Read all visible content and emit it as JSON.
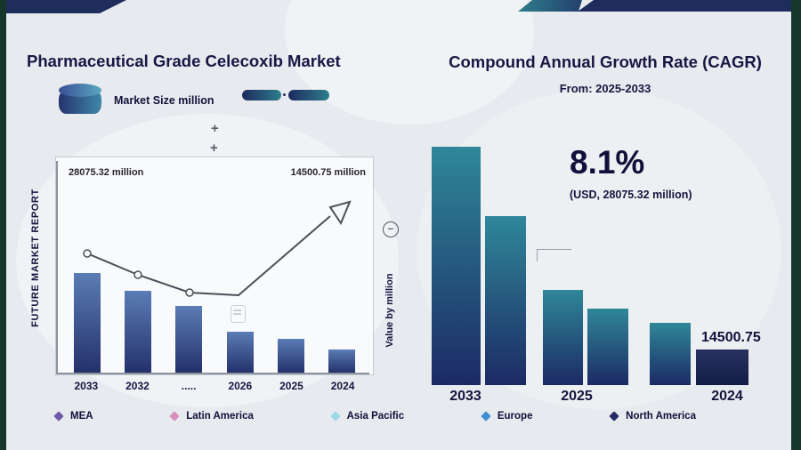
{
  "page": {
    "background": "#e7eaee",
    "accent_teal": "#2e7d8c",
    "accent_navy": "#1f2d5c",
    "edge_stripe": "#16362b"
  },
  "decorations": {
    "plus_sign": "+",
    "minus_sign": "−"
  },
  "left_section": {
    "title": "Pharmaceutical Grade Celecoxib Market",
    "icon_label": "Market Size million",
    "side_label": "FUTURE MARKET REPORT",
    "axis_label": "Value by million",
    "annotation_left": "28075.32 million",
    "annotation_right": "14500.75 million"
  },
  "right_section": {
    "title": "Compound Annual Growth Rate (CAGR)",
    "subtitle": "From: 2025-2033",
    "cagr": "8.1%",
    "cagr_detail": "(USD, 28075.32 million)",
    "end_value": "14500.75"
  },
  "legend": [
    {
      "label": "MEA",
      "color": "#6f58a8"
    },
    {
      "label": "Latin America",
      "color": "#d88fbe"
    },
    {
      "label": "Asia Pacific",
      "color": "#9ed9ea"
    },
    {
      "label": "Europe",
      "color": "#3f8fd2"
    },
    {
      "label": "North America",
      "color": "#232e66"
    }
  ],
  "chart_data": [
    {
      "type": "bar",
      "title": "Pharmaceutical Grade Celecoxib Market — Market Size (million)",
      "categories": [
        "2033",
        "2032",
        ".....",
        "2026",
        "2025",
        "2024"
      ],
      "values": [
        28075.32,
        24000,
        20000,
        17000,
        15700,
        14500.75
      ],
      "labeled_values": {
        "2033": 28075.32,
        "2024": 14500.75
      },
      "ylabel": "Value by million",
      "xlabel": "",
      "grid": false,
      "bar_heights_pct": [
        100,
        82,
        67,
        41,
        34,
        23
      ],
      "trend_note": "line with circular markers descending from 2033, then arrow rising toward the 14500.75 million annotation"
    },
    {
      "type": "bar",
      "title": "Compound Annual Growth Rate (CAGR)",
      "subtitle": "From: 2025-2033",
      "categories": [
        "2033",
        "2025",
        "2024"
      ],
      "cagr_pct": 8.1,
      "value_2033_million_usd": 28075.32,
      "value_2024_million_usd": 14500.75,
      "bar_heights_pct": [
        [
          100,
          71
        ],
        [
          40,
          32
        ],
        [
          26,
          15
        ]
      ],
      "grid": false,
      "legend_position": "bottom"
    }
  ]
}
